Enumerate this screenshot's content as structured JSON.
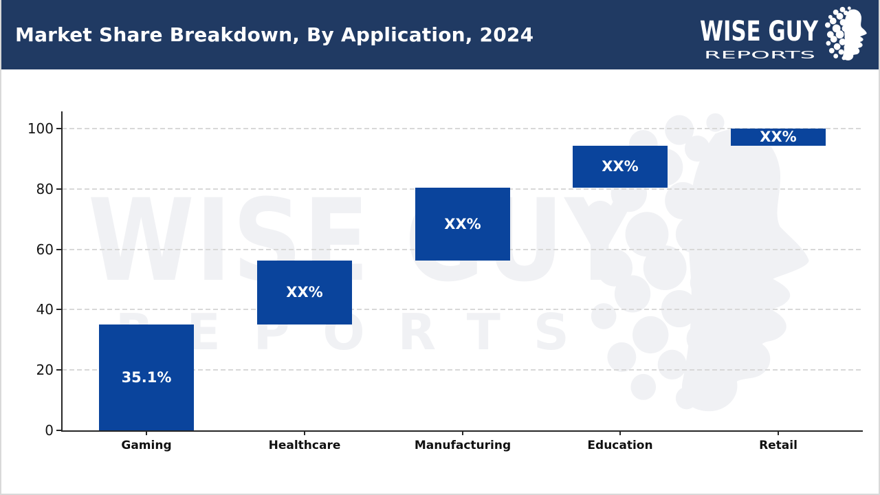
{
  "header": {
    "title": "Market Share Breakdown, By Application, 2024",
    "logo": {
      "line1": "WISE GUY",
      "line2": "REPORTS"
    }
  },
  "watermark": {
    "line1": "WISE GUY",
    "line2": "REPORTS"
  },
  "colors": {
    "header_bg": "#203a63",
    "bar": "#0a449c",
    "grid": "#d8d8d8",
    "axis": "#262626",
    "bar_label": "#ffffff",
    "watermark": "#f0f1f4"
  },
  "chart_data": {
    "type": "bar",
    "subtype": "waterfall-floating-bars",
    "title": "Market Share Breakdown, By Application, 2024",
    "categories": [
      "Gaming",
      "Healthcare",
      "Manufacturing",
      "Education",
      "Retail"
    ],
    "segments": [
      {
        "category": "Gaming",
        "start": 0,
        "end": 35.1,
        "label": "35.1%"
      },
      {
        "category": "Healthcare",
        "start": 35.1,
        "end": 56.3,
        "label": "XX%"
      },
      {
        "category": "Manufacturing",
        "start": 56.3,
        "end": 80.4,
        "label": "XX%"
      },
      {
        "category": "Education",
        "start": 80.4,
        "end": 94.4,
        "label": "XX%"
      },
      {
        "category": "Retail",
        "start": 94.4,
        "end": 100,
        "label": "XX%"
      }
    ],
    "xlabel": "",
    "ylabel": "",
    "yticks": [
      0,
      20,
      40,
      60,
      80,
      100
    ],
    "ylim": [
      0,
      105
    ],
    "grid": "horizontal-dashed",
    "legend": "none",
    "bar_color": "#0a449c",
    "value_label_color": "#ffffff"
  }
}
